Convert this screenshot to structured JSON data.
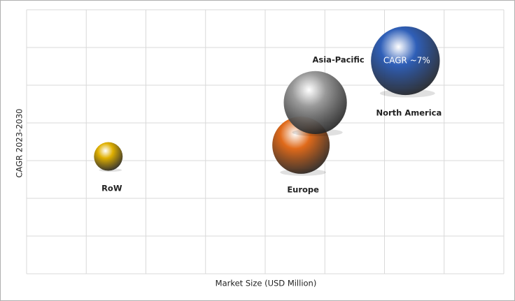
{
  "chart_data": {
    "type": "bubble",
    "x_label": "Market Size (USD Million)",
    "y_label": "CAGR 2023-2030",
    "labels": [
      "RoW",
      "Europe",
      "Asia-Pacific",
      "North America"
    ],
    "x": [
      1.37,
      4.6,
      4.84,
      6.35
    ],
    "values": [
      3.11,
      3.41,
      4.54,
      5.65
    ],
    "sizes": [
      0.5,
      1.0,
      1.1,
      1.2
    ],
    "colors": [
      "#e0b000",
      "#e06a1a",
      "#9a9a9a",
      "#2f5fb8"
    ],
    "annotation": "CAGR ~7%",
    "xlim": [
      0,
      8
    ],
    "ylim": [
      0,
      7
    ],
    "xticks": [
      0,
      1,
      2,
      3,
      4,
      5,
      6,
      7,
      8
    ],
    "yticks": [
      0,
      1,
      2,
      3,
      4,
      5,
      6,
      7
    ],
    "grid": true
  }
}
